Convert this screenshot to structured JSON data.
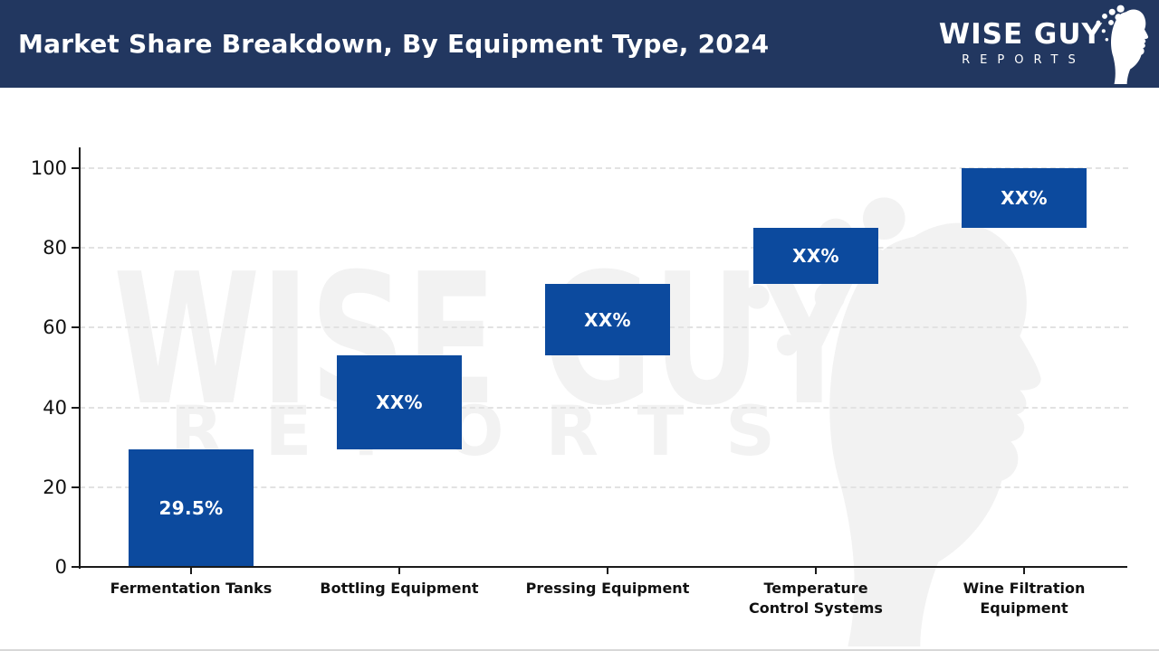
{
  "header": {
    "title": "Market Share Breakdown, By Equipment Type, 2024",
    "bg_color": "#223760",
    "logo": {
      "line1": "WISE GUY",
      "line2": "REPORTS"
    }
  },
  "watermark": {
    "line1": "WISE GUY",
    "line2": "REPORTS",
    "color": "#f2f2f2"
  },
  "chart_data": {
    "type": "bar",
    "subtype": "waterfall",
    "title": "Market Share Breakdown, By Equipment Type, 2024",
    "xlabel": "",
    "ylabel": "",
    "ylim": [
      0,
      105
    ],
    "yticks": [
      0,
      20,
      40,
      60,
      80,
      100
    ],
    "grid": "horizontal-dashed",
    "legend": "none",
    "bar_color": "#0c4a9e",
    "value_label_color": "#ffffff",
    "categories": [
      "Fermentation Tanks",
      "Bottling Equipment",
      "Pressing Equipment",
      "Temperature Control Systems",
      "Wine Filtration Equipment"
    ],
    "category_lines": [
      [
        "Fermentation Tanks"
      ],
      [
        "Bottling Equipment"
      ],
      [
        "Pressing Equipment"
      ],
      [
        "Temperature",
        "Control Systems"
      ],
      [
        "Wine Filtration",
        "Equipment"
      ]
    ],
    "bars": [
      {
        "category": "Fermentation Tanks",
        "start": 0,
        "end": 29.5,
        "value": 29.5,
        "label": "29.5%"
      },
      {
        "category": "Bottling Equipment",
        "start": 29.5,
        "end": 53,
        "value": 23.5,
        "label": "XX%"
      },
      {
        "category": "Pressing Equipment",
        "start": 53,
        "end": 71,
        "value": 18,
        "label": "XX%"
      },
      {
        "category": "Temperature Control Systems",
        "start": 71,
        "end": 85,
        "value": 14,
        "label": "XX%"
      },
      {
        "category": "Wine Filtration Equipment",
        "start": 85,
        "end": 100,
        "value": 15,
        "label": "XX%"
      }
    ]
  }
}
